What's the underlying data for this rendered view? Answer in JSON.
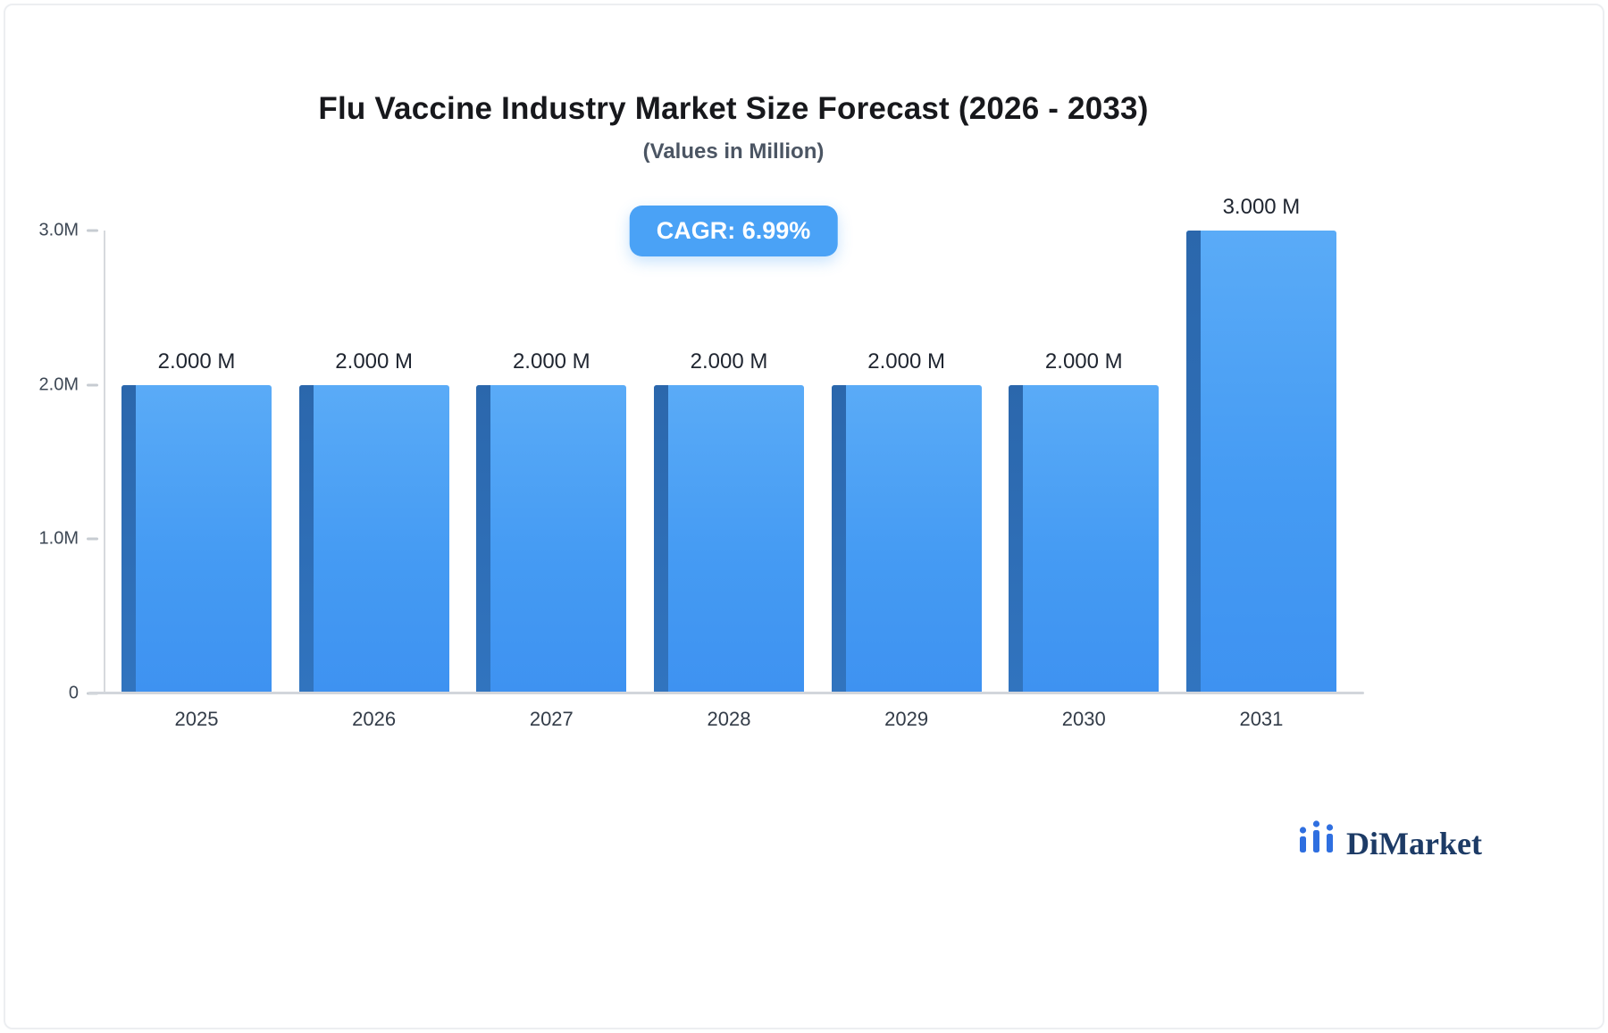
{
  "header": {
    "title": "Flu Vaccine Industry Market Size Forecast (2026 - 2033)",
    "subtitle": "(Values in Million)",
    "cagr_badge": "CAGR: 6.99%"
  },
  "logo": {
    "text": "DiMarket",
    "icon": "bar-chart-icon"
  },
  "colors": {
    "bar_fill": "#459bf3",
    "bar_side": "#2b67ac",
    "badge_bg": "#4aa2f6",
    "title_text": "#17181c",
    "logo_text": "#1d3b66",
    "axis_line": "#d2d6db"
  },
  "chart_data": {
    "type": "bar",
    "title": "Flu Vaccine Industry Market Size Forecast (2026 - 2033)",
    "subtitle": "(Values in Million)",
    "unit": "Million",
    "cagr": "6.99%",
    "categories": [
      "2025",
      "2026",
      "2027",
      "2028",
      "2029",
      "2030",
      "2031"
    ],
    "values": [
      2.0,
      2.0,
      2.0,
      2.0,
      2.0,
      2.0,
      3.0
    ],
    "bar_labels": [
      "2.000 M",
      "2.000 M",
      "2.000 M",
      "2.000 M",
      "2.000 M",
      "2.000 M",
      "3.000 M"
    ],
    "xlabel": "",
    "ylabel": "",
    "ylim": [
      0,
      3
    ],
    "yticks": [
      {
        "value": 0,
        "label": "0"
      },
      {
        "value": 1,
        "label": "1.0M"
      },
      {
        "value": 2,
        "label": "2.0M"
      },
      {
        "value": 3,
        "label": "3.0M"
      }
    ],
    "grid": false,
    "legend_position": "none"
  }
}
